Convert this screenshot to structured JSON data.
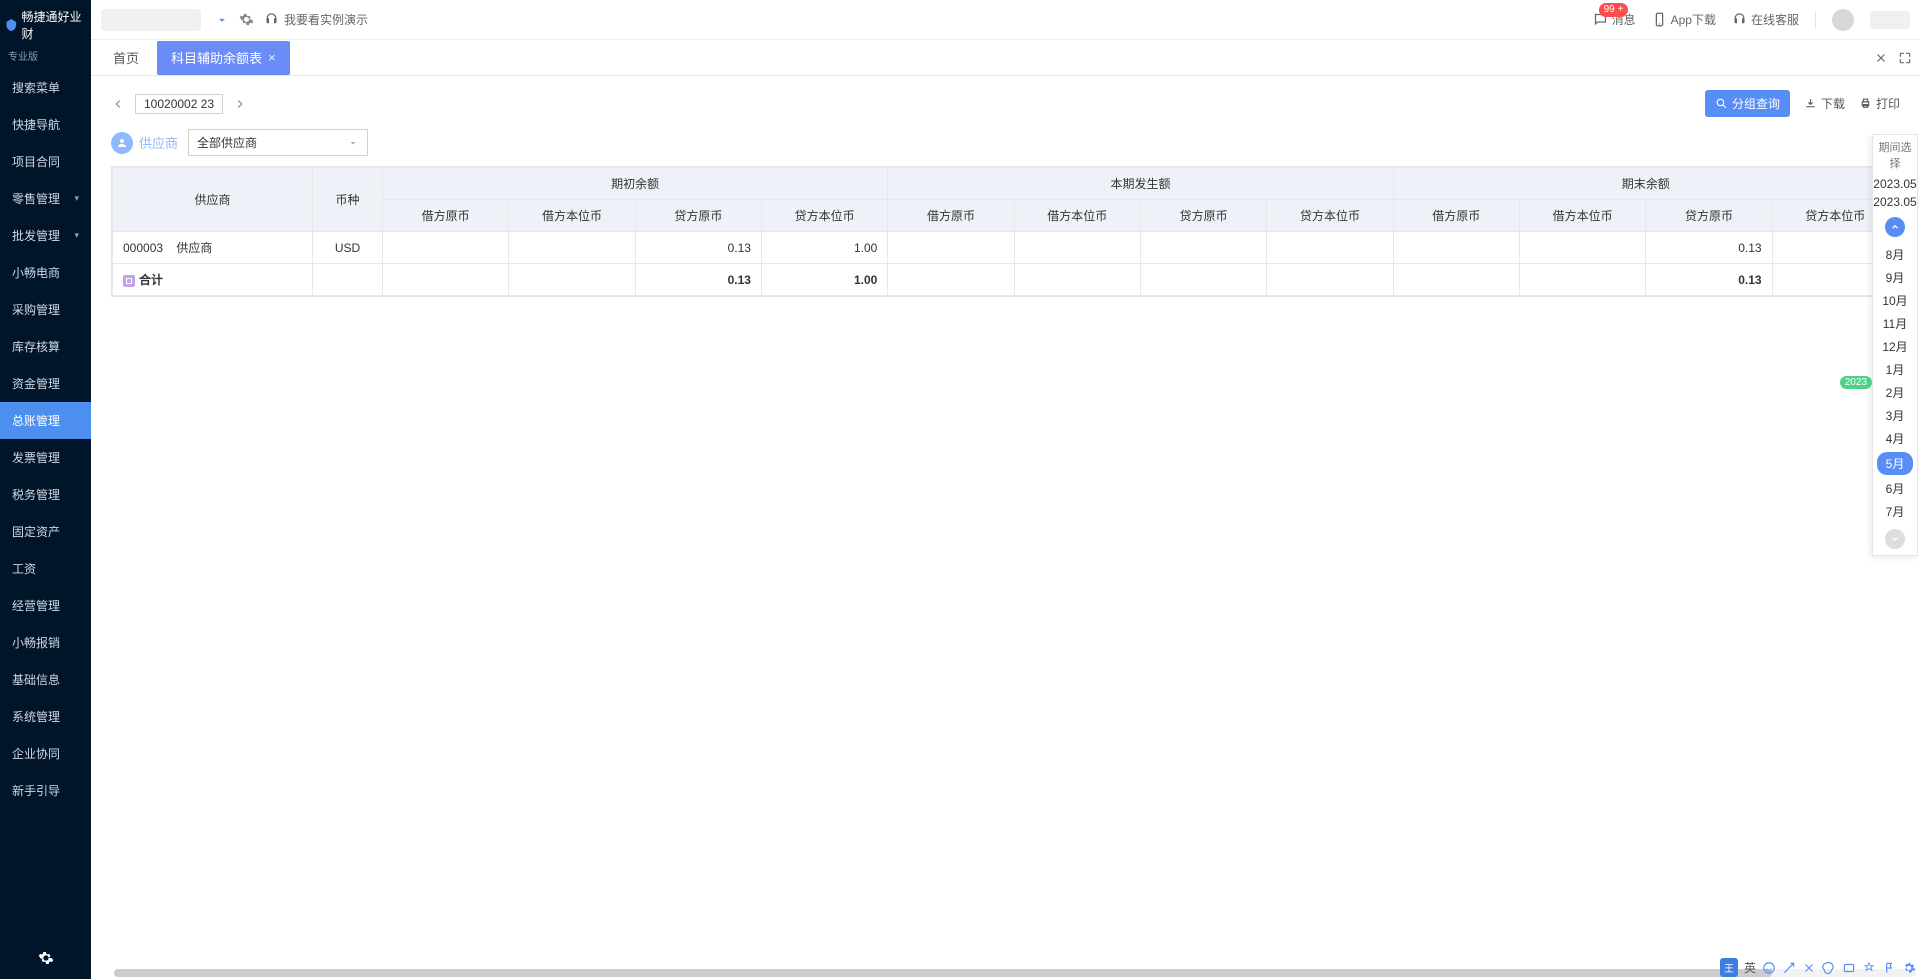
{
  "brand": {
    "name": "畅捷通好业财",
    "edition": "专业版"
  },
  "sidebar": {
    "items": [
      {
        "label": "搜索菜单",
        "expand": false
      },
      {
        "label": "快捷导航",
        "expand": false
      },
      {
        "label": "项目合同",
        "expand": false
      },
      {
        "label": "零售管理",
        "expand": true
      },
      {
        "label": "批发管理",
        "expand": true
      },
      {
        "label": "小畅电商",
        "expand": false
      },
      {
        "label": "采购管理",
        "expand": false
      },
      {
        "label": "库存核算",
        "expand": false
      },
      {
        "label": "资金管理",
        "expand": false
      },
      {
        "label": "总账管理",
        "expand": false,
        "active": true
      },
      {
        "label": "发票管理",
        "expand": false
      },
      {
        "label": "税务管理",
        "expand": false
      },
      {
        "label": "固定资产",
        "expand": false
      },
      {
        "label": "工资",
        "expand": false
      },
      {
        "label": "经营管理",
        "expand": false
      },
      {
        "label": "小畅报销",
        "expand": false
      },
      {
        "label": "基础信息",
        "expand": false
      },
      {
        "label": "系统管理",
        "expand": false
      },
      {
        "label": "企业协同",
        "expand": false
      },
      {
        "label": "新手引导",
        "expand": false
      }
    ]
  },
  "topbar": {
    "demo": "我要看实例演示",
    "msg": "消息",
    "msg_badge": "99 +",
    "download": "App下载",
    "service": "在线客服"
  },
  "tabs": {
    "home": "首页",
    "active": "科目辅助余额表"
  },
  "toolbar": {
    "code": "10020002  23",
    "group_query": "分组查询",
    "download": "下载",
    "print": "打印"
  },
  "filter": {
    "supplier": "供应商",
    "select_value": "全部供应商"
  },
  "table": {
    "groups": [
      "期初余额",
      "本期发生额",
      "期末余额"
    ],
    "cols": {
      "supplier": "供应商",
      "currency": "币种",
      "debit_orig": "借方原币",
      "debit_base": "借方本位币",
      "credit_orig": "贷方原币",
      "credit_base": "贷方本位币"
    },
    "row": {
      "code": "000003",
      "name": "供应商",
      "currency": "USD",
      "opening_credit_orig": "0.13",
      "opening_credit_base": "1.00",
      "closing_credit_orig": "0.13"
    },
    "total_label": "合计",
    "total": {
      "opening_credit_orig": "0.13",
      "opening_credit_base": "1.00",
      "closing_credit_orig": "0.13"
    }
  },
  "period": {
    "title": "期间选择",
    "from": "2023.05",
    "to": "2023.05",
    "year_badge": "2023",
    "months": [
      "8月",
      "9月",
      "10月",
      "11月",
      "12月",
      "1月",
      "2月",
      "3月",
      "4月",
      "5月",
      "6月",
      "7月"
    ],
    "active_month": "5月"
  },
  "ime": {
    "badge": "王",
    "lang": "英"
  },
  "colors": {
    "sidebar_bg": "#001529",
    "primary": "#588df5",
    "tab_active": "#6a8cf7",
    "thead_bg": "#eef1f7",
    "badge_red": "#ff4d4f",
    "year_green": "#4fd08a"
  }
}
